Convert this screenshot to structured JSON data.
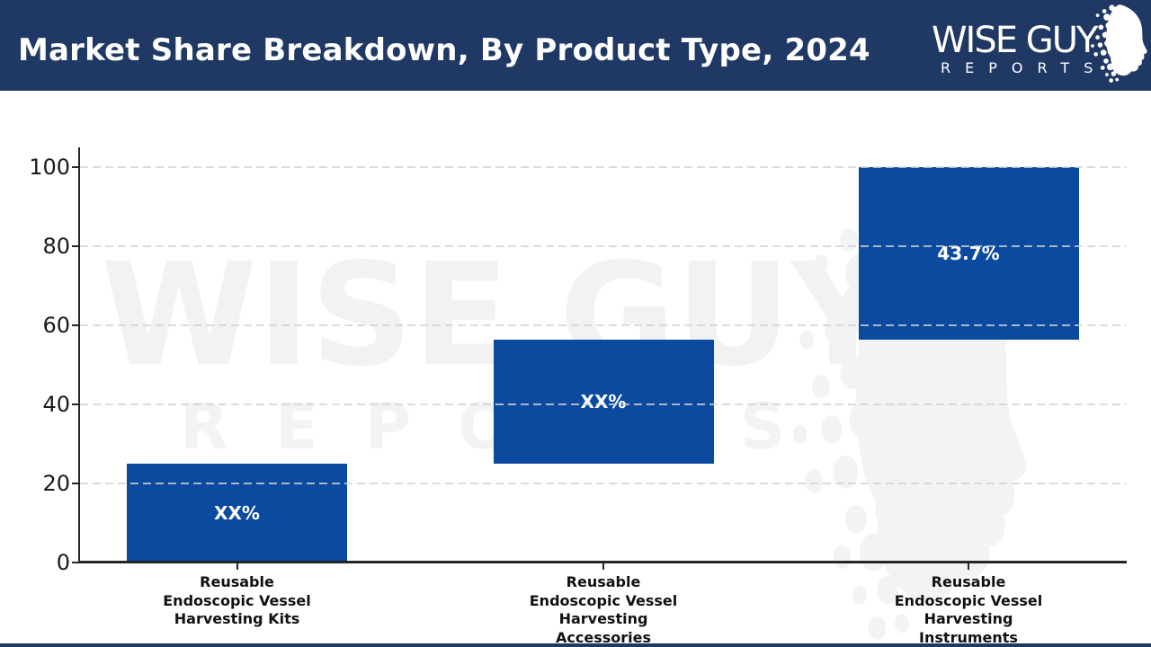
{
  "header": {
    "title": "Market Share Breakdown, By Product Type, 2024",
    "bg_color": "#1f3864",
    "logo": {
      "line1": "WISE GUY",
      "line2": "REPORTS"
    }
  },
  "watermark": {
    "line1": "WISE GUY",
    "line2": "REPORTS"
  },
  "chart_data": {
    "type": "bar",
    "subtype": "stacked-waterfall-segments",
    "title": "Market Share Breakdown, By Product Type, 2024",
    "categories": [
      [
        "Reusable",
        "Endoscopic Vessel",
        "Harvesting Kits"
      ],
      [
        "Reusable",
        "Endoscopic Vessel",
        "Harvesting",
        "Accessories"
      ],
      [
        "Reusable",
        "Endoscopic Vessel",
        "Harvesting",
        "Instruments"
      ]
    ],
    "segments": [
      {
        "label": "XX%",
        "start": 0,
        "end": 25,
        "value": 25
      },
      {
        "label": "XX%",
        "start": 25,
        "end": 56.3,
        "value": 31.3
      },
      {
        "label": "43.7%",
        "start": 56.3,
        "end": 100,
        "value": 43.7
      }
    ],
    "yticks": [
      0,
      20,
      40,
      60,
      80,
      100
    ],
    "ylim": [
      0,
      100
    ],
    "xlabel": "",
    "ylabel": "",
    "grid": "dashed-horizontal",
    "legend": "none",
    "bar_color": "#0b4a9e",
    "bar_label_color": "#ffffff",
    "axis_color": "#262626"
  },
  "footer": {
    "bg_color": "#1f3864"
  }
}
